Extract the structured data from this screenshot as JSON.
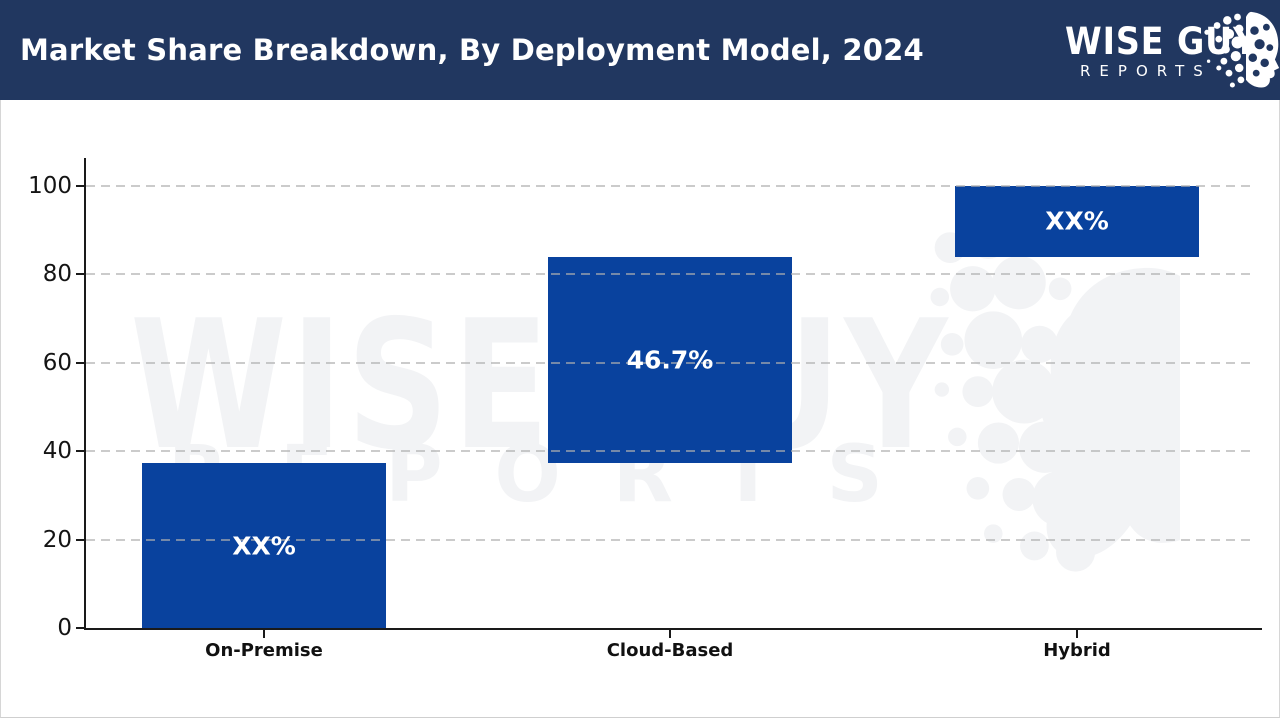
{
  "header": {
    "title": "Market Share Breakdown, By Deployment Model, 2024",
    "logo": {
      "name": "WISE GUY",
      "subname": "REPORTS"
    }
  },
  "watermark": {
    "name": "WISE GUY",
    "subname": "REPORTS"
  },
  "chart_data": {
    "type": "bar",
    "variant": "waterfall-floating-bars",
    "title": "Market Share Breakdown, By Deployment Model, 2024",
    "categories": [
      "On-Premise",
      "Cloud-Based",
      "Hybrid"
    ],
    "bars": [
      {
        "category": "On-Premise",
        "start": 0,
        "end": 37.3,
        "label": "XX%"
      },
      {
        "category": "Cloud-Based",
        "start": 37.3,
        "end": 84.0,
        "label": "46.7%"
      },
      {
        "category": "Hybrid",
        "start": 84.0,
        "end": 100,
        "label": "XX%"
      }
    ],
    "xlabel": "",
    "ylabel": "",
    "ylim": [
      0,
      100
    ],
    "yticks": [
      0,
      20,
      40,
      60,
      80,
      100
    ],
    "grid": "horizontal-dashed",
    "legend": "none"
  },
  "colors": {
    "header_bg": "#213760",
    "bar": "#09429e",
    "bar_label": "#ffffff",
    "axis": "#1a1a1a",
    "grid_dash": "#cfcfcf",
    "watermark": "#f2f3f5",
    "title_text": "#ffffff"
  }
}
